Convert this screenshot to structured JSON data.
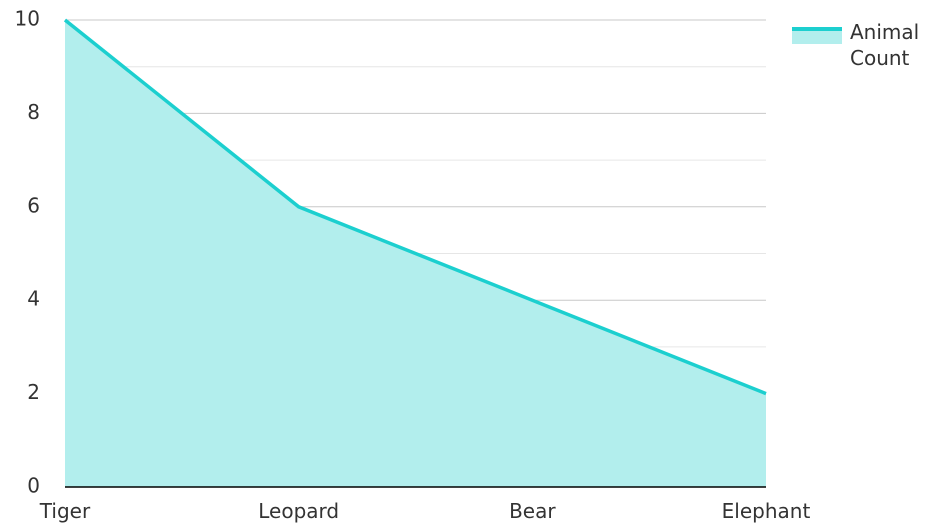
{
  "chart_data": {
    "type": "area",
    "categories": [
      "Tiger",
      "Leopard",
      "Bear",
      "Elephant"
    ],
    "series": [
      {
        "name": "Animal Count",
        "values": [
          10,
          6,
          4,
          2
        ]
      }
    ],
    "ylim": [
      0,
      10
    ],
    "yticks": [
      "0",
      "2",
      "4",
      "6",
      "8",
      "10"
    ],
    "grid": true,
    "legend": "top-right",
    "colors": {
      "line": "#1ccfcf",
      "fill": "#b2eeed",
      "grid": "#d9d9d9",
      "axis": "#000000"
    }
  }
}
